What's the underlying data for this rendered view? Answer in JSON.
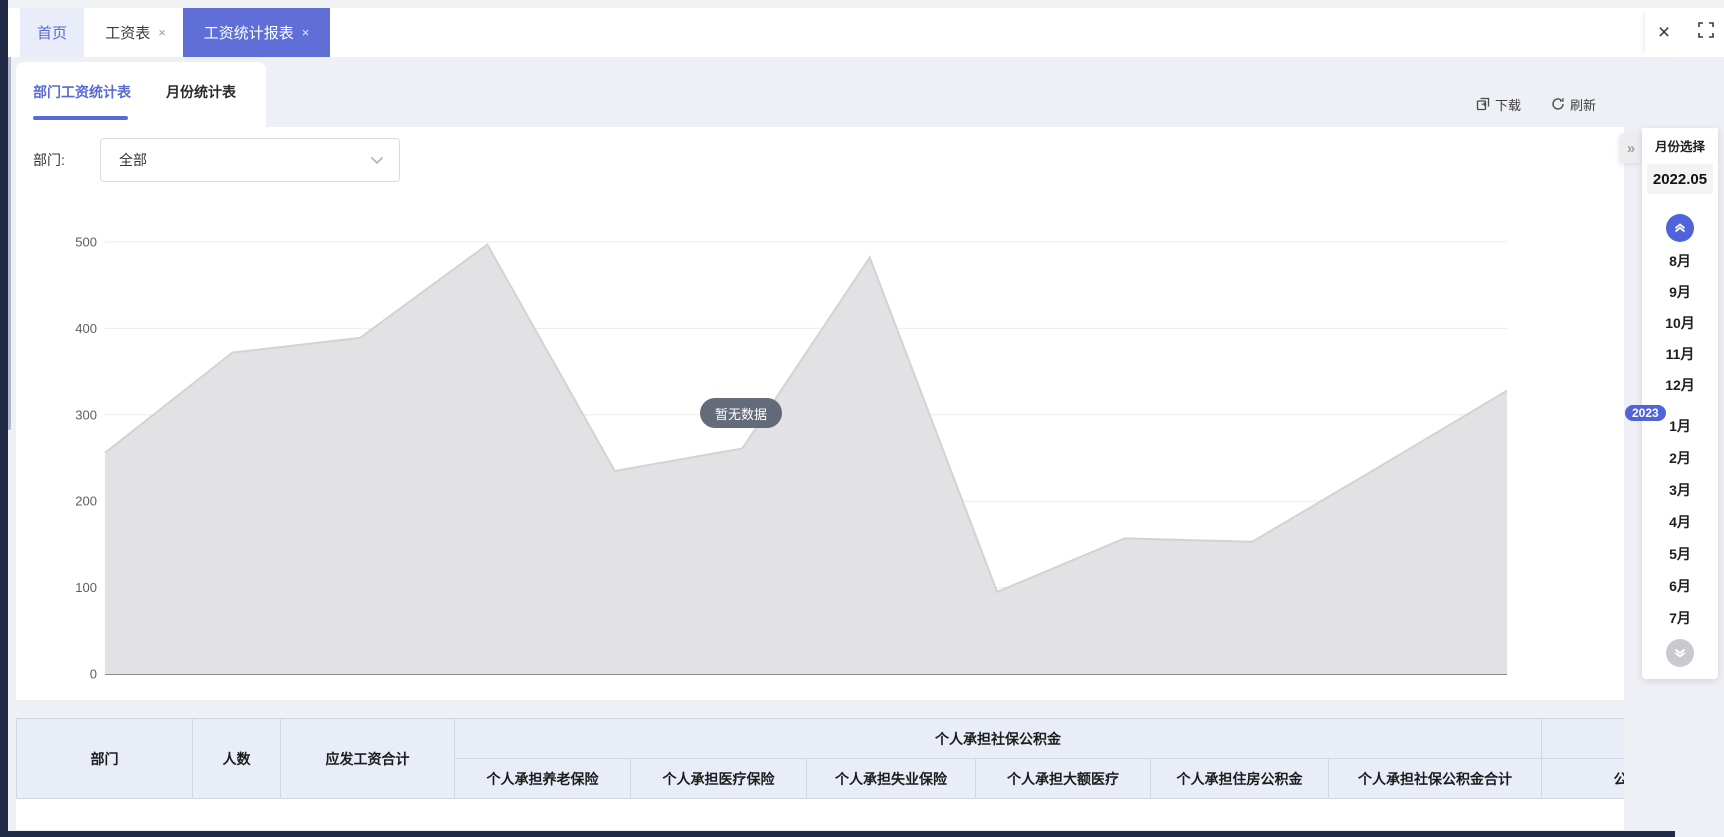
{
  "top_bar": {
    "tabs": [
      {
        "label": "首页",
        "closable": false,
        "state": "home"
      },
      {
        "label": "工资表",
        "closable": true,
        "state": "normal"
      },
      {
        "label": "工资统计报表",
        "closable": true,
        "state": "active"
      }
    ],
    "close_glyph": "×"
  },
  "sub_tabs": [
    {
      "label": "部门工资统计表",
      "active": true
    },
    {
      "label": "月份统计表",
      "active": false
    }
  ],
  "toolbar": {
    "download_label": "下载",
    "refresh_label": "刷新"
  },
  "filter": {
    "label": "部门:",
    "value": "全部"
  },
  "chart_data": {
    "type": "area",
    "title": "",
    "xlabel": "",
    "ylabel": "",
    "yticks": [
      0,
      100,
      200,
      300,
      400,
      500
    ],
    "ylim": [
      0,
      500
    ],
    "x_count": 12,
    "x_tick_labels_visible": false,
    "values": [
      256,
      372,
      389,
      497,
      235,
      261,
      482,
      95,
      157,
      153,
      240,
      328
    ],
    "series_name": "placeholder-silhouette",
    "series_fill": "#e2e2e5",
    "series_line": "#d3d3d6",
    "grid": true,
    "legend": false,
    "overlay_label": "暂无数据"
  },
  "month_panel": {
    "collapse_glyph": "»",
    "title": "月份选择",
    "selected": "2022.05",
    "year_badge": "2023",
    "months_2022": [
      "8月",
      "9月",
      "10月",
      "11月",
      "12月"
    ],
    "months_2023": [
      "1月",
      "2月",
      "3月",
      "4月",
      "5月",
      "6月",
      "7月"
    ]
  },
  "table": {
    "headers": {
      "department": "部门",
      "headcount": "人数",
      "gross_total": "应发工资合计",
      "personal_group": "个人承担社保公积金",
      "personal_columns": [
        "个人承担养老保险",
        "个人承担医疗保险",
        "个人承担失业保险",
        "个人承担大额医疗",
        "个人承担住房公积金",
        "个人承担社保公积金合计"
      ],
      "company_partial": "公司承担"
    },
    "rows": []
  },
  "colors": {
    "accent": "#5f6fd7",
    "badge": "#5163d9",
    "table_header_bg": "#e9edf8",
    "nodata_bg": "#58606e"
  }
}
